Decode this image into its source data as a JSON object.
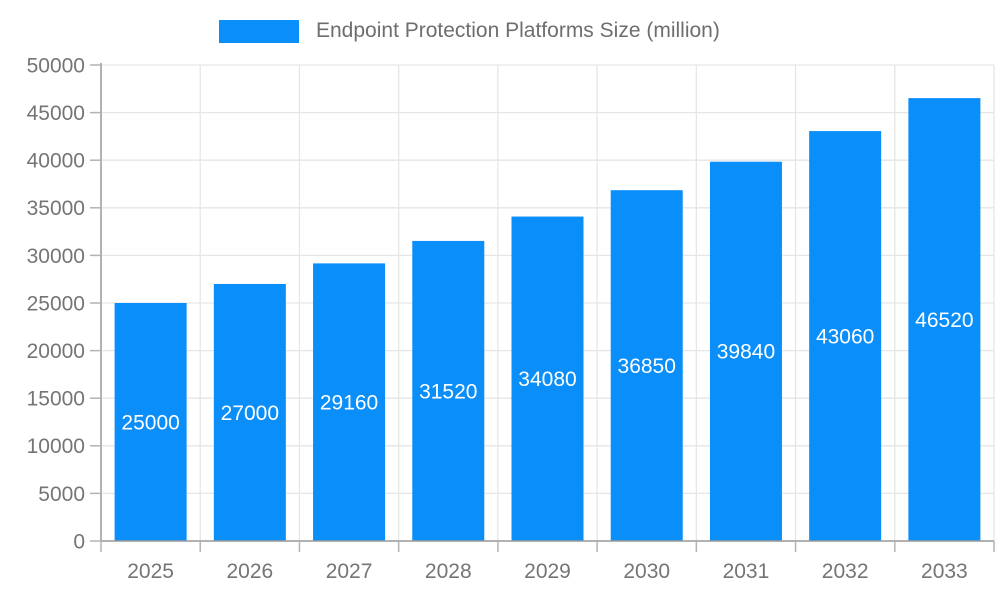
{
  "chart_data": {
    "type": "bar",
    "title": "Endpoint Protection Platforms Size (million)",
    "categories": [
      "2025",
      "2026",
      "2027",
      "2028",
      "2029",
      "2030",
      "2031",
      "2032",
      "2033"
    ],
    "series": [
      {
        "name": "Endpoint Protection Platforms Size (million)",
        "values": [
          25000,
          27000,
          29160,
          31520,
          34080,
          36850,
          39840,
          43060,
          46520
        ]
      }
    ],
    "xlabel": "",
    "ylabel": "",
    "ylim": [
      0,
      50000
    ],
    "ytick_step": 5000,
    "yticks": [
      0,
      5000,
      10000,
      15000,
      20000,
      25000,
      30000,
      35000,
      40000,
      45000,
      50000
    ],
    "grid": true,
    "legend_position": "top-center",
    "bar_labels_inside": true,
    "colors": {
      "bar": "#0A8EF9",
      "bar_value_label": "#ffffff",
      "axis_line": "#999999",
      "tick_mark": "#b3b3b3",
      "grid_line": "#e6e6e6",
      "tick_label": "#757575",
      "legend_text": "#6e6e6e",
      "background": "#ffffff"
    }
  }
}
